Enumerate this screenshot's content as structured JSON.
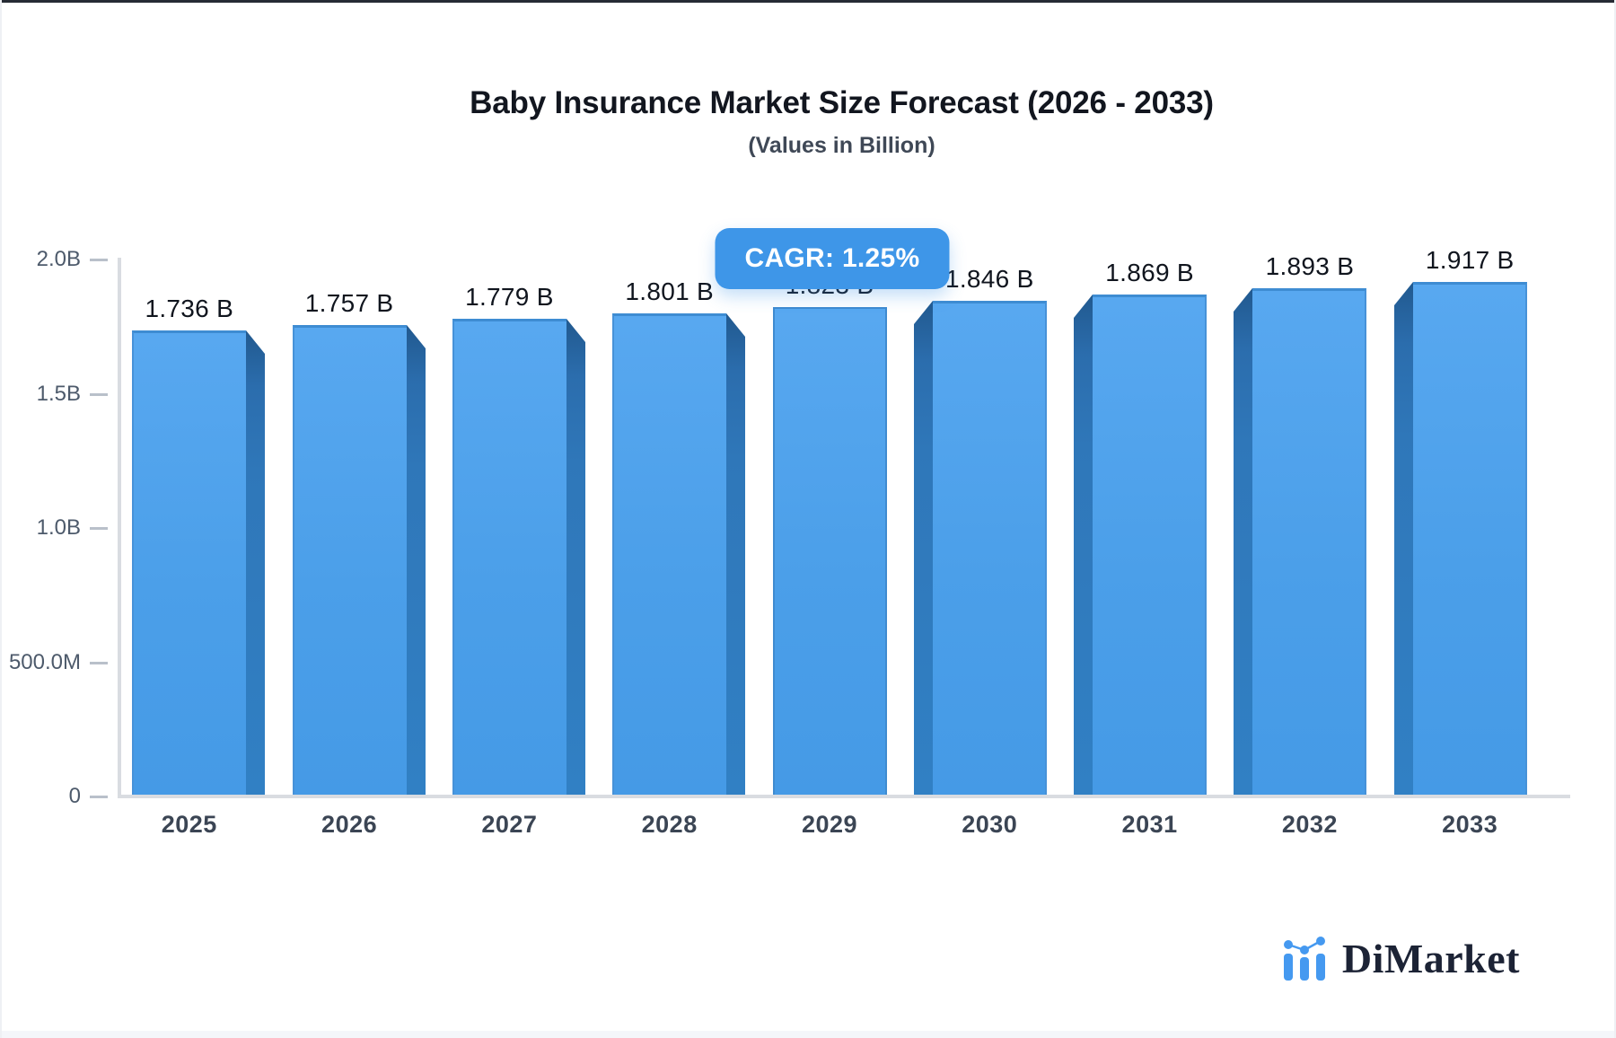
{
  "header": {
    "title": "Baby Insurance Market Size Forecast (2026 - 2033)",
    "subtitle": "(Values in Billion)"
  },
  "annotation": {
    "cagr_label": "CAGR: 1.25%"
  },
  "chart_data": {
    "type": "bar",
    "title": "Baby Insurance Market Size Forecast (2026 - 2033)",
    "subtitle": "(Values in Billion)",
    "categories": [
      "2025",
      "2026",
      "2027",
      "2028",
      "2029",
      "2030",
      "2031",
      "2032",
      "2033"
    ],
    "values": [
      1.736,
      1.757,
      1.779,
      1.801,
      1.823,
      1.846,
      1.869,
      1.893,
      1.917
    ],
    "value_labels": [
      "1.736 B",
      "1.757 B",
      "1.779 B",
      "1.801 B",
      "1.823 B",
      "1.846 B",
      "1.869 B",
      "1.893 B",
      "1.917 B"
    ],
    "unit": "Billion",
    "xlabel": "",
    "ylabel": "",
    "ylim": [
      0,
      2.0
    ],
    "yticks": [
      {
        "label": "2.0B",
        "value": 2.0
      },
      {
        "label": "1.5B",
        "value": 1.5
      },
      {
        "label": "1.0B",
        "value": 1.0
      },
      {
        "label": "500.0M",
        "value": 0.5
      },
      {
        "label": "0",
        "value": 0
      }
    ],
    "grid": false,
    "legend": null,
    "annotation": "CAGR: 1.25%",
    "colors": {
      "bar_face_top": "#58a8f0",
      "bar_face_bottom": "#459ae6",
      "bar_side_dark": "#21598f",
      "bar_side_light": "#3180c4",
      "badge_background": "#3e96e8",
      "badge_text": "#ffffff",
      "axis_line": "#d9dce1",
      "tick_text": "#4d5a6b",
      "title_text": "#12161f",
      "value_label_text": "#10151e",
      "logo_blue": "#4599f0",
      "logo_navy": "#1c2335"
    }
  },
  "logo": {
    "text": "DiMarket",
    "icon": "dimarket-bars-icon"
  }
}
